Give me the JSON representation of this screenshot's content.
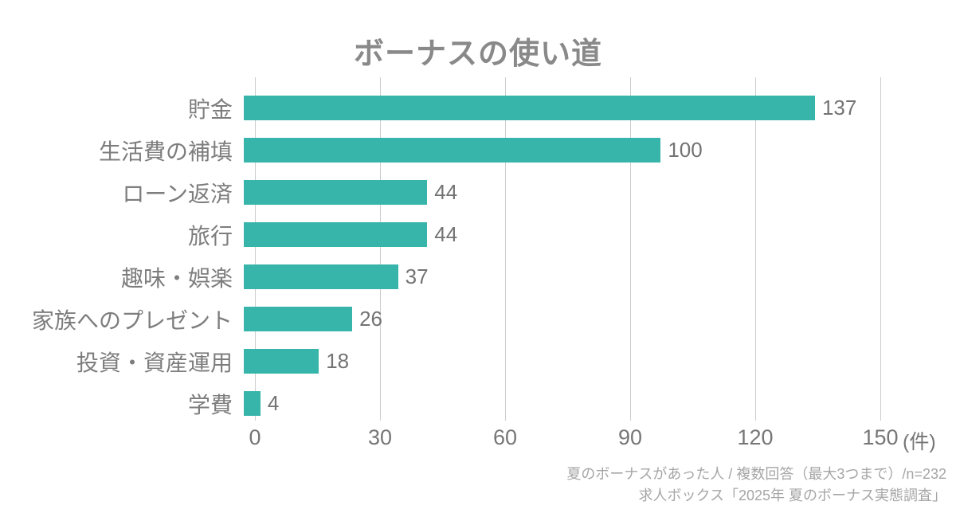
{
  "chart": {
    "title": "ボーナスの使い道"
  },
  "chart_data": {
    "type": "bar",
    "orientation": "horizontal",
    "title": "ボーナスの使い道",
    "categories": [
      "貯金",
      "生活費の補填",
      "ローン返済",
      "旅行",
      "趣味・娯楽",
      "家族へのプレゼント",
      "投資・資産運用",
      "学費"
    ],
    "values": [
      137,
      100,
      44,
      44,
      37,
      26,
      18,
      4
    ],
    "xlim": [
      0,
      150
    ],
    "xticks": [
      "0",
      "30",
      "60",
      "90",
      "120",
      "150"
    ],
    "unit_label": "(件)",
    "grid": true,
    "value_labels_shown": true,
    "legend": "none"
  },
  "notes": {
    "line1": "夏のボーナスがあった人 / 複数回答（最大3つまで）/n=232",
    "line2": "求人ボックス「2025年 夏のボーナス実態調査」"
  },
  "colors": {
    "bar": "#38b5ab",
    "grid": "#cccccc",
    "title_text": "#898989",
    "category_text": "#7d7d7d",
    "value_text": "#737373",
    "tick_text": "#767676",
    "note_text": "#a6a6a6"
  }
}
